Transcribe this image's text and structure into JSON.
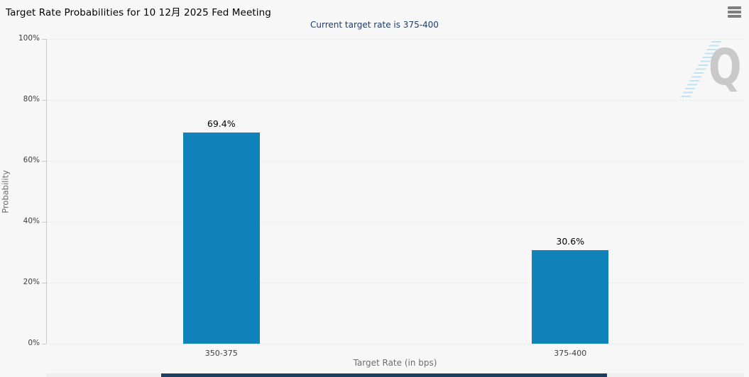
{
  "header": {
    "title": "Target Rate Probabilities for 10 12月 2025 Fed Meeting",
    "subtitle": "Current target rate is 375-400"
  },
  "watermark": {
    "letter": "Q"
  },
  "chart_data": {
    "type": "bar",
    "title": "Target Rate Probabilities for 10 12月 2025 Fed Meeting",
    "subtitle": "Current target rate is 375-400",
    "categories": [
      "350-375",
      "375-400"
    ],
    "values": [
      69.4,
      30.6
    ],
    "value_labels": [
      "69.4%",
      "30.6%"
    ],
    "xlabel": "Target Rate (in bps)",
    "ylabel": "Probability",
    "ylim": [
      0,
      100
    ],
    "ytick_values": [
      0,
      20,
      40,
      60,
      80,
      100
    ],
    "ytick_labels": [
      "0%",
      "20%",
      "40%",
      "60%",
      "80%",
      "100%"
    ],
    "grid": "dotted horizontal gridlines",
    "legend": "none",
    "bar_color": "#1082ba",
    "background_color": "#f7f7f7",
    "subtitle_color": "#1e3d6b"
  }
}
